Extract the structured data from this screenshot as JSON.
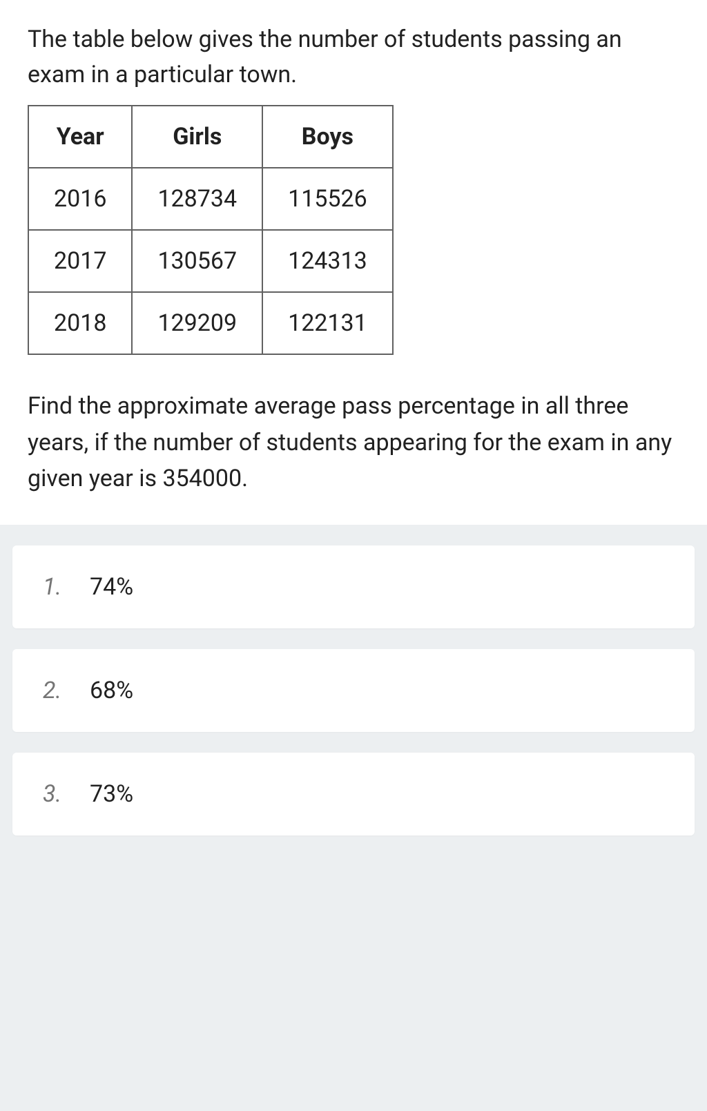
{
  "question": {
    "intro": "The table below gives the number of students passing an exam in a particular town.",
    "prompt": "Find the approximate average pass percentage in all three years, if the number of students appearing for the exam in any given year is 354000."
  },
  "table": {
    "columns": [
      "Year",
      "Girls",
      "Boys"
    ],
    "rows": [
      [
        "2016",
        "128734",
        "115526"
      ],
      [
        "2017",
        "130567",
        "124313"
      ],
      [
        "2018",
        "129209",
        "122131"
      ]
    ],
    "border_color": "#616161",
    "header_fontweight": 700,
    "cell_fontsize": 34
  },
  "options": [
    {
      "num": "1.",
      "text": "74%"
    },
    {
      "num": "2.",
      "text": "68%"
    },
    {
      "num": "3.",
      "text": "73%"
    }
  ],
  "colors": {
    "page_bg": "#eceff1",
    "card_bg": "#ffffff",
    "text": "#212121",
    "muted": "#757575"
  }
}
